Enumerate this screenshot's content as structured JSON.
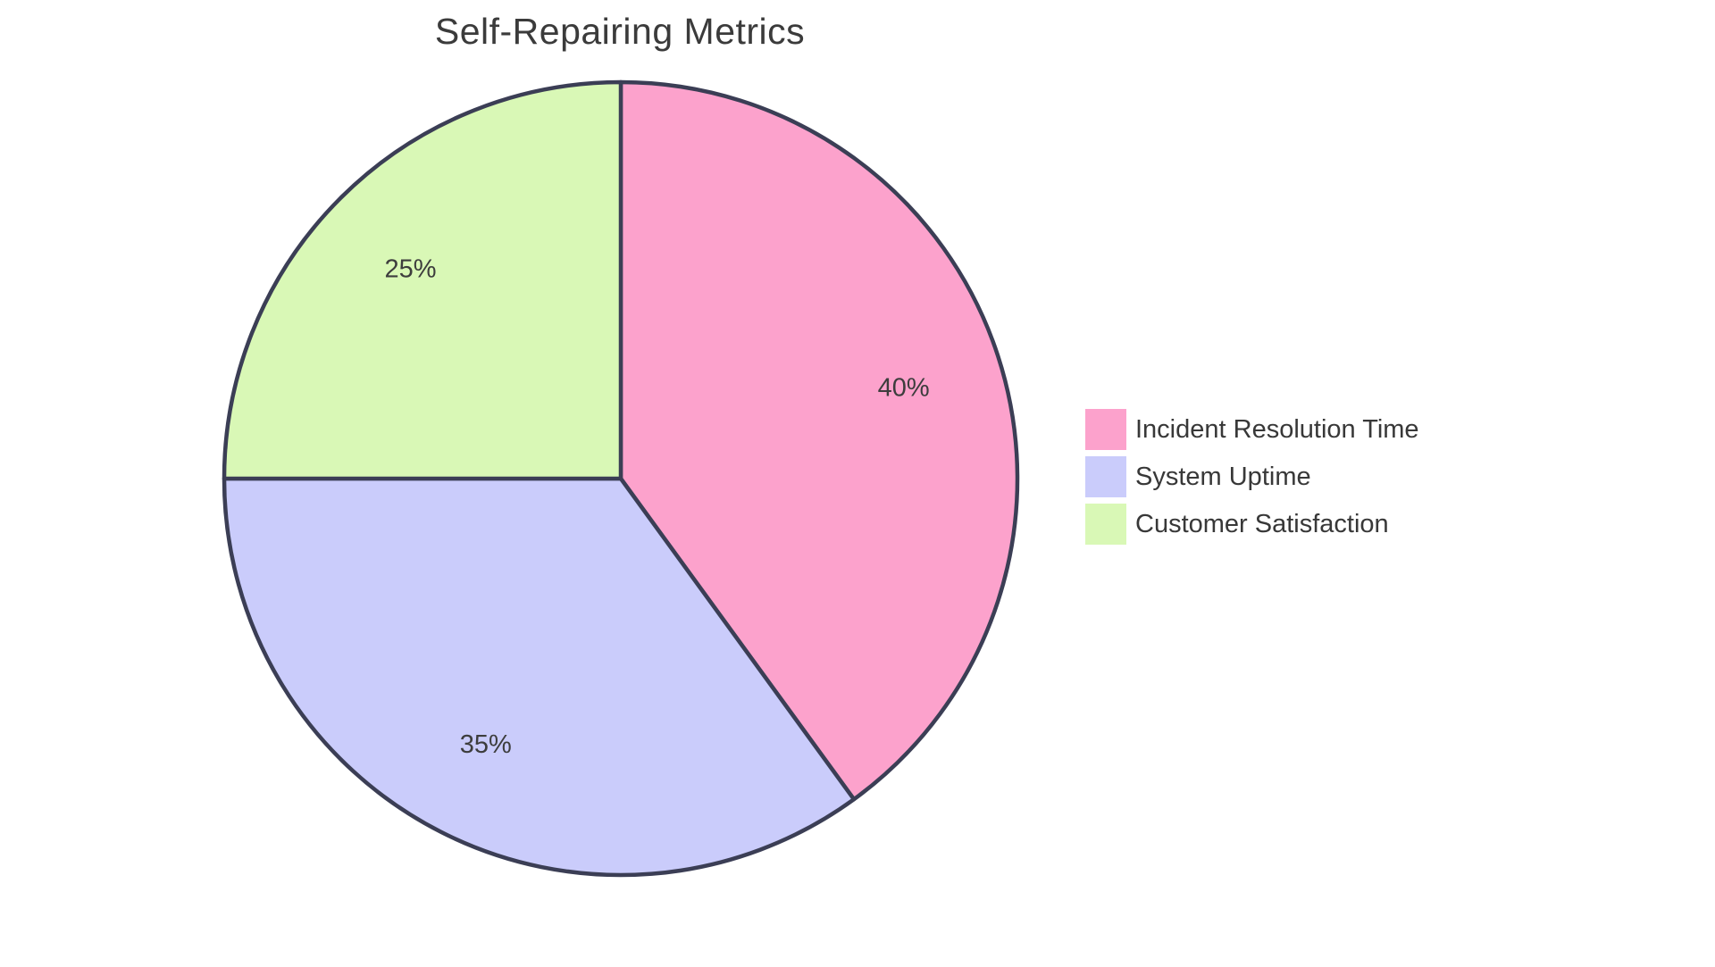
{
  "chart_data": {
    "type": "pie",
    "title": "Self-Repairing Metrics",
    "labels": [
      "Incident Resolution Time",
      "System Uptime",
      "Customer Satisfaction"
    ],
    "values": [
      40,
      35,
      25
    ],
    "value_labels": [
      "40%",
      "35%",
      "25%"
    ],
    "colors": [
      "#FCA2CC",
      "#CACCFB",
      "#D9F8B6"
    ],
    "stroke_color": "#3B3E55",
    "background_color": "#FFFFFF",
    "start_angle_deg": 0,
    "direction": "clockwise",
    "legend_position": "right"
  }
}
